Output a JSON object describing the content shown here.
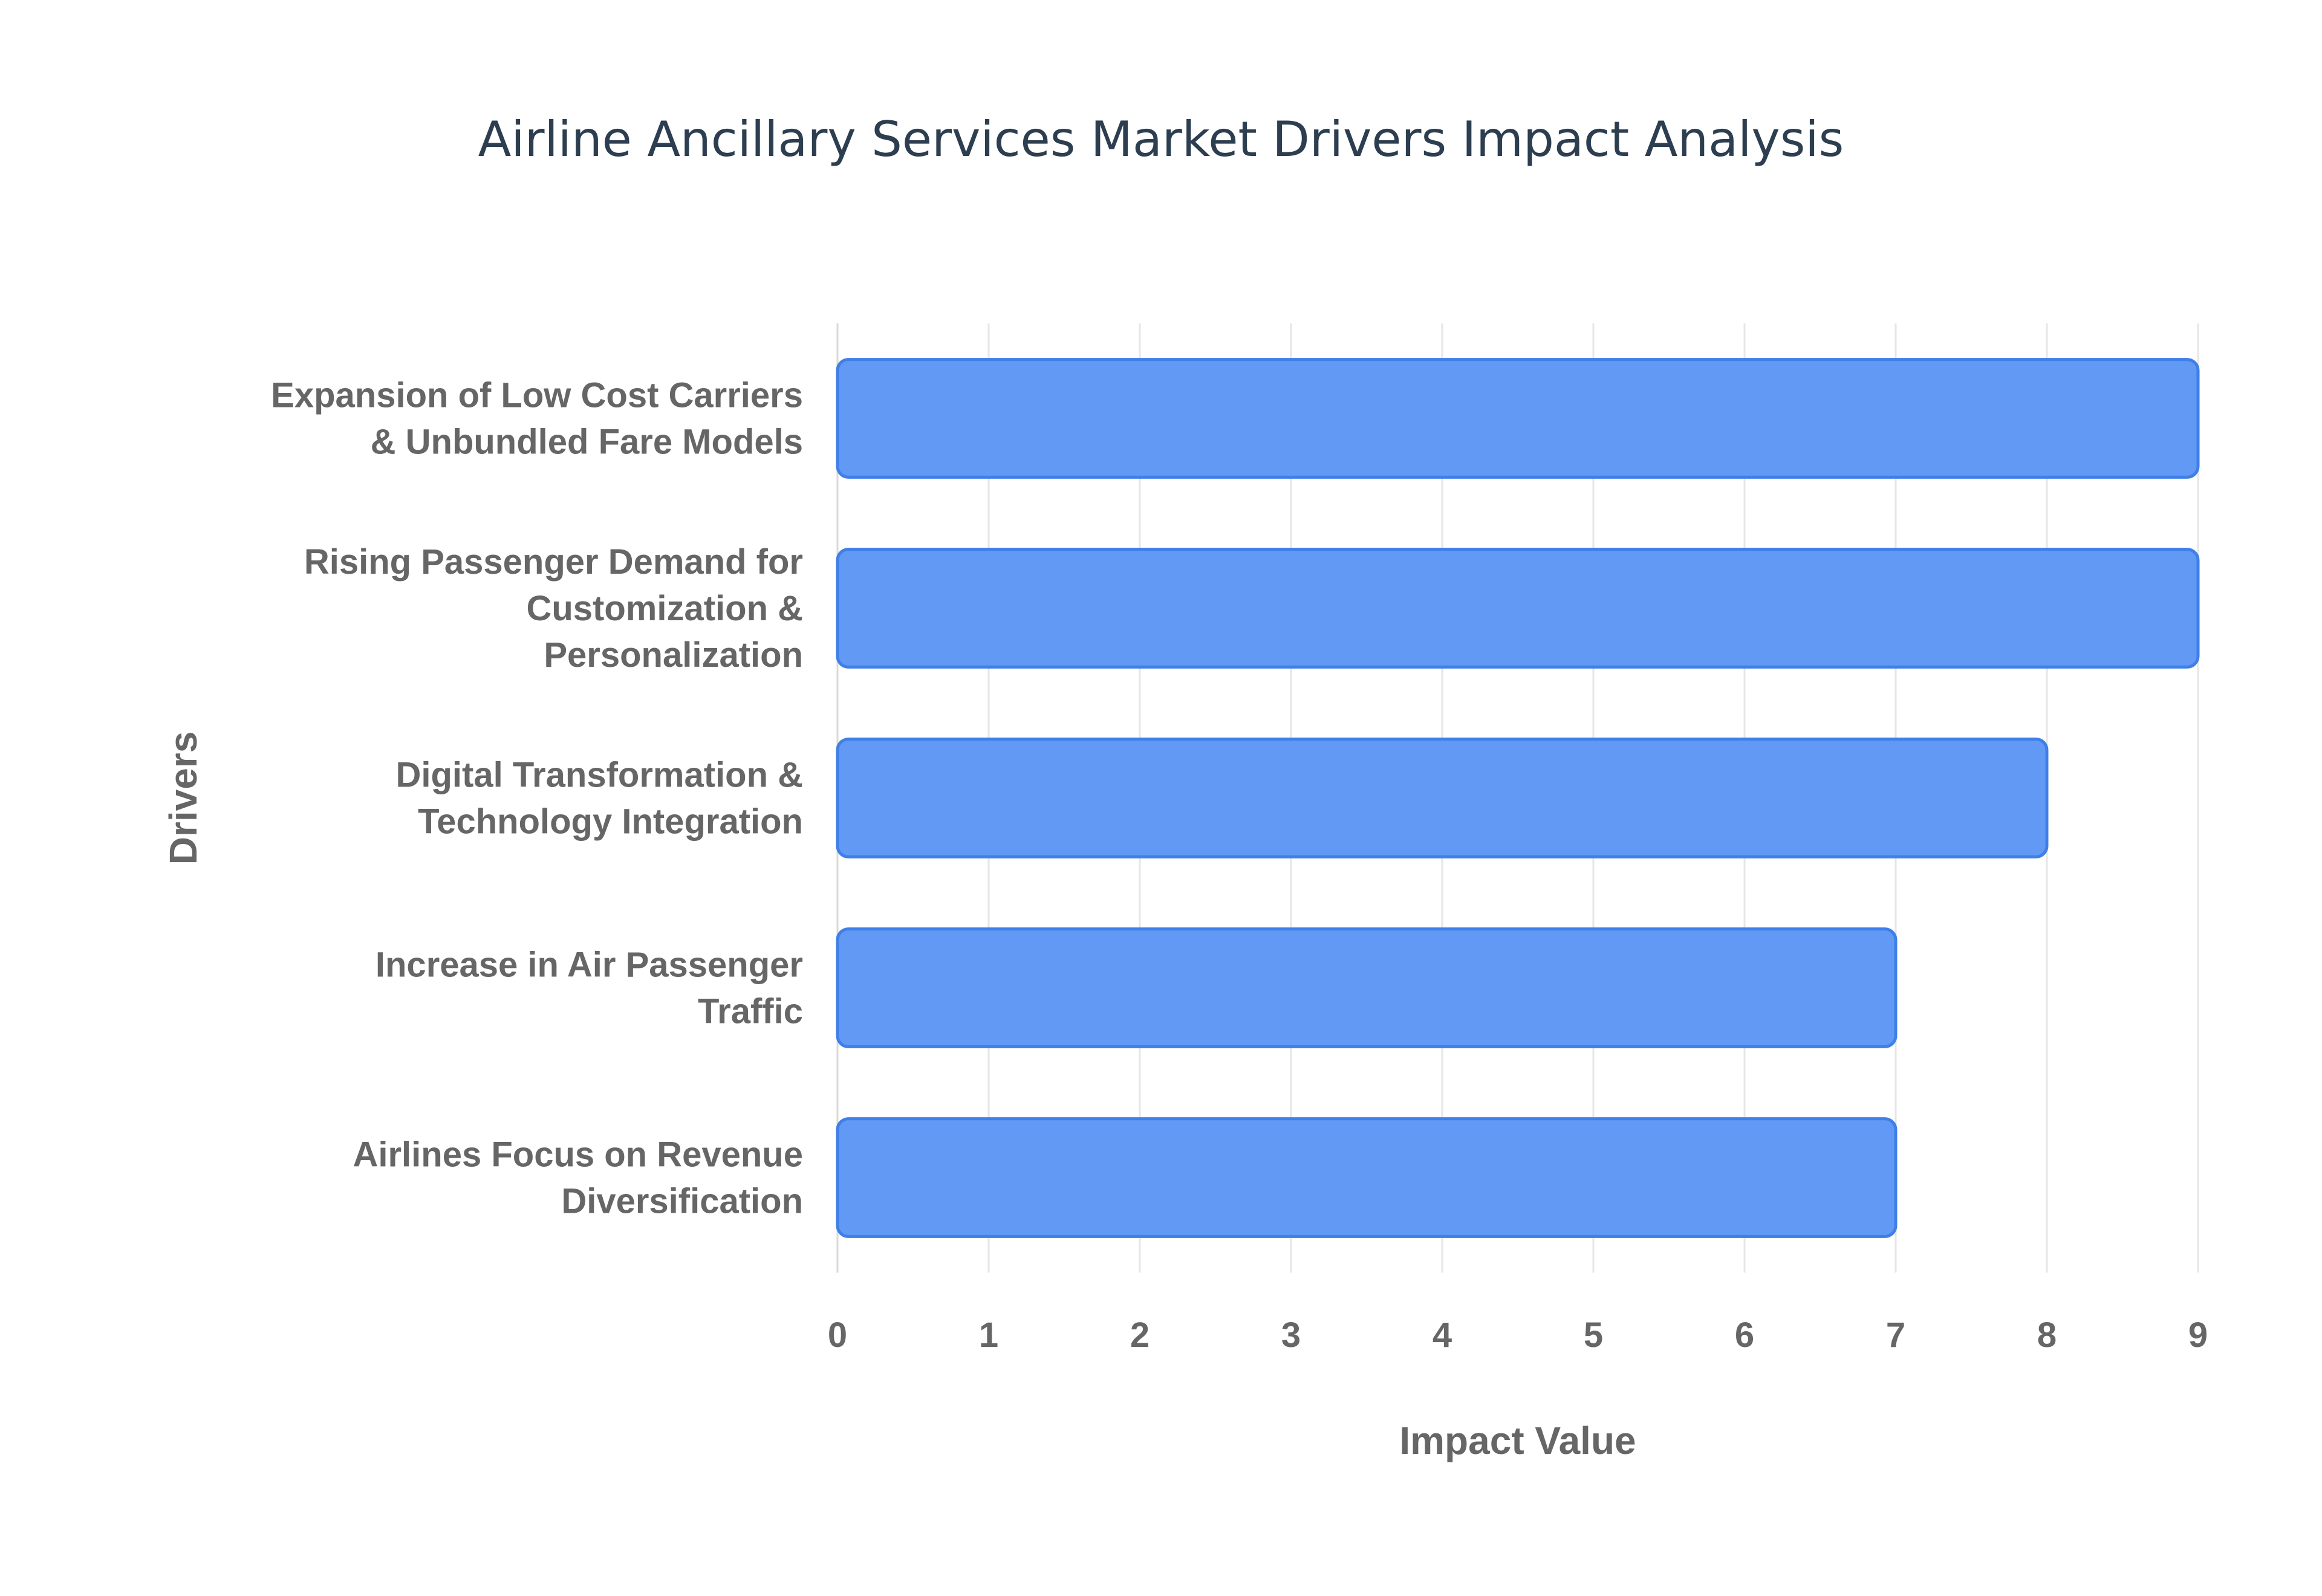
{
  "chart_data": {
    "type": "bar",
    "orientation": "horizontal",
    "title": "Airline Ancillary Services Market Drivers Impact Analysis",
    "xlabel": "Impact Value",
    "ylabel": "Drivers",
    "categories": [
      [
        "Expansion of Low Cost Carriers",
        "& Unbundled Fare Models"
      ],
      [
        "Rising Passenger Demand for",
        "Customization &",
        "Personalization"
      ],
      [
        "Digital Transformation &",
        "Technology Integration"
      ],
      [
        "Increase in Air Passenger",
        "Traffic"
      ],
      [
        "Airlines Focus on Revenue",
        "Diversification"
      ]
    ],
    "values": [
      9,
      9,
      8,
      7,
      7
    ],
    "xlim": [
      0,
      9
    ],
    "xticks": [
      "0",
      "1",
      "2",
      "3",
      "4",
      "5",
      "6",
      "7",
      "8",
      "9"
    ],
    "grid": true,
    "legend": "none",
    "colors": {
      "bar_fill": "#6199f5",
      "bar_stroke": "#3f7fe8",
      "title": "#2c3e50",
      "text": "#666666",
      "grid": "#e6e6e6"
    }
  }
}
